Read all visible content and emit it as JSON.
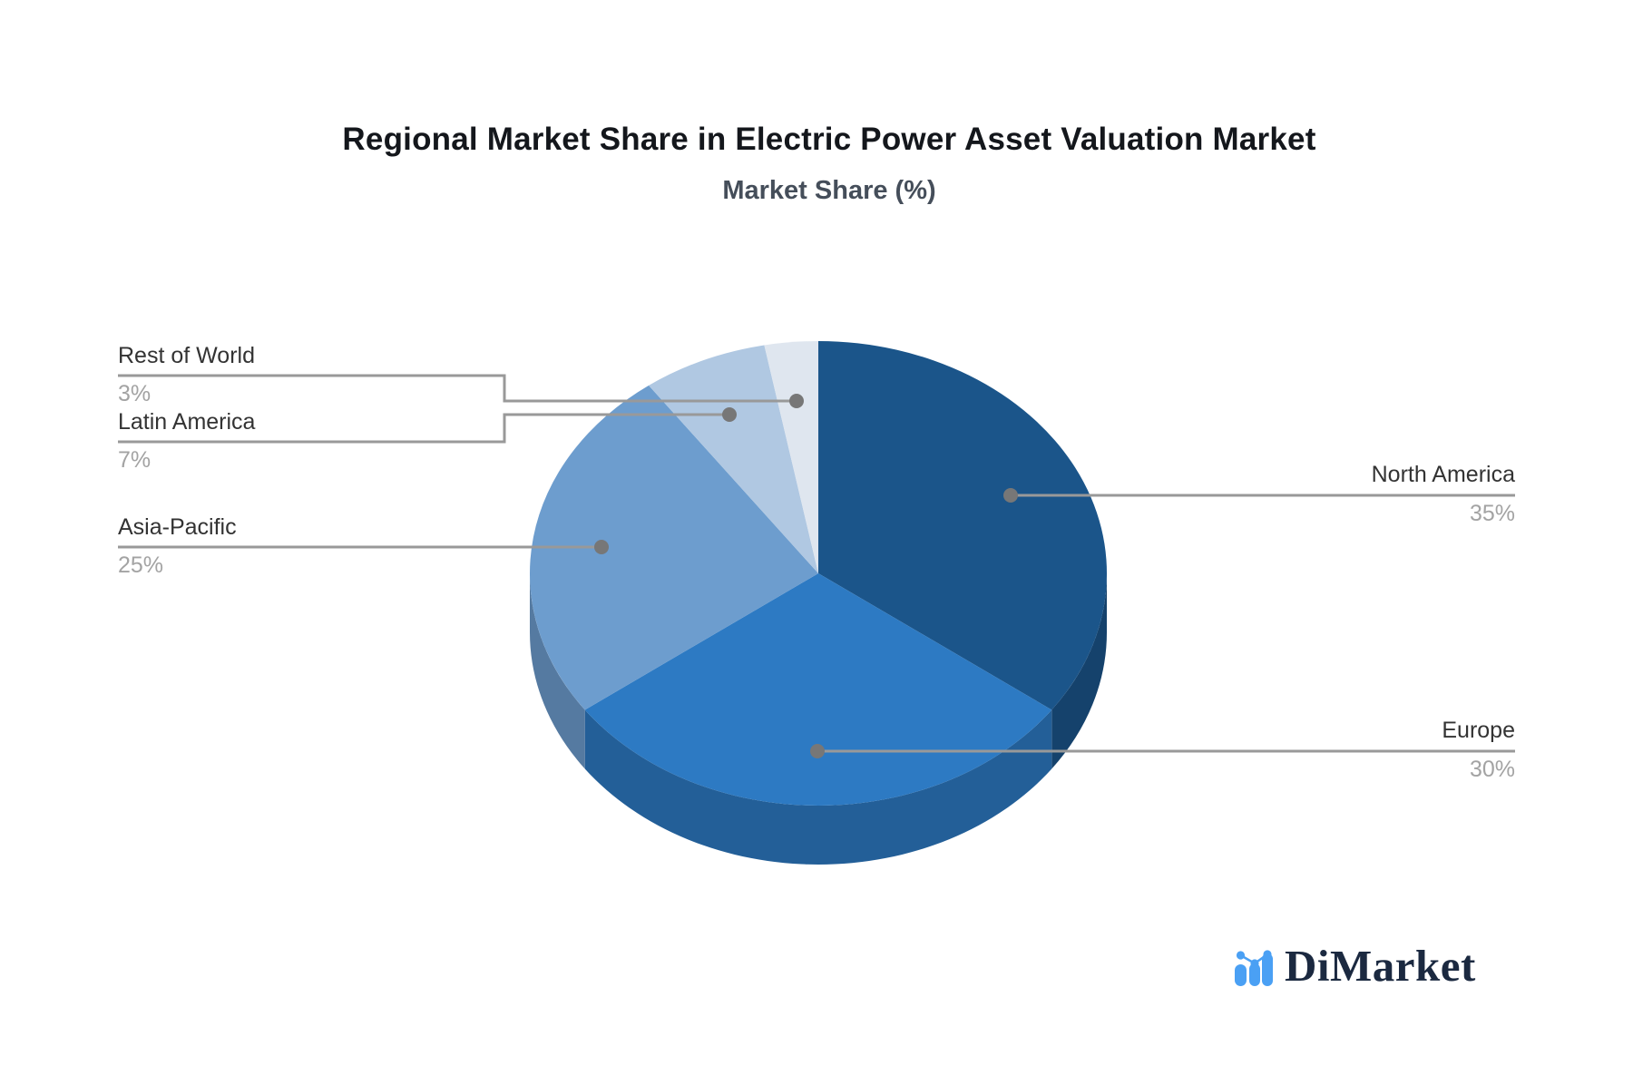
{
  "title": "Regional Market Share in Electric Power Asset Valuation Market",
  "subtitle": "Market Share (%)",
  "logo": {
    "text": "DiMarket",
    "icon": "bar-chart-logo-icon",
    "icon_color": "#4aa0f4",
    "text_color": "#1b2940"
  },
  "chart_data": {
    "type": "pie",
    "style": "3d",
    "title": "Regional Market Share in Electric Power Asset Valuation Market",
    "subtitle": "Market Share (%)",
    "unit": "%",
    "start_angle": "12 o'clock",
    "direction": "clockwise",
    "legend_position": "callout-labels",
    "series": [
      {
        "name": "North America",
        "value": 35,
        "pct_label": "35%",
        "color": "#1b558a",
        "label_side": "right"
      },
      {
        "name": "Europe",
        "value": 30,
        "pct_label": "30%",
        "color": "#2d7ac3",
        "label_side": "right"
      },
      {
        "name": "Asia-Pacific",
        "value": 25,
        "pct_label": "25%",
        "color": "#6d9dce",
        "label_side": "left"
      },
      {
        "name": "Latin America",
        "value": 7,
        "pct_label": "7%",
        "color": "#b0c8e2",
        "label_side": "left"
      },
      {
        "name": "Rest of World",
        "value": 3,
        "pct_label": "3%",
        "color": "#dfe6ef",
        "label_side": "left"
      }
    ],
    "colors": {
      "leader_line": "#999999",
      "dot": "#777777",
      "label_text": "#333333",
      "pct_text": "#a3a3a3"
    }
  }
}
